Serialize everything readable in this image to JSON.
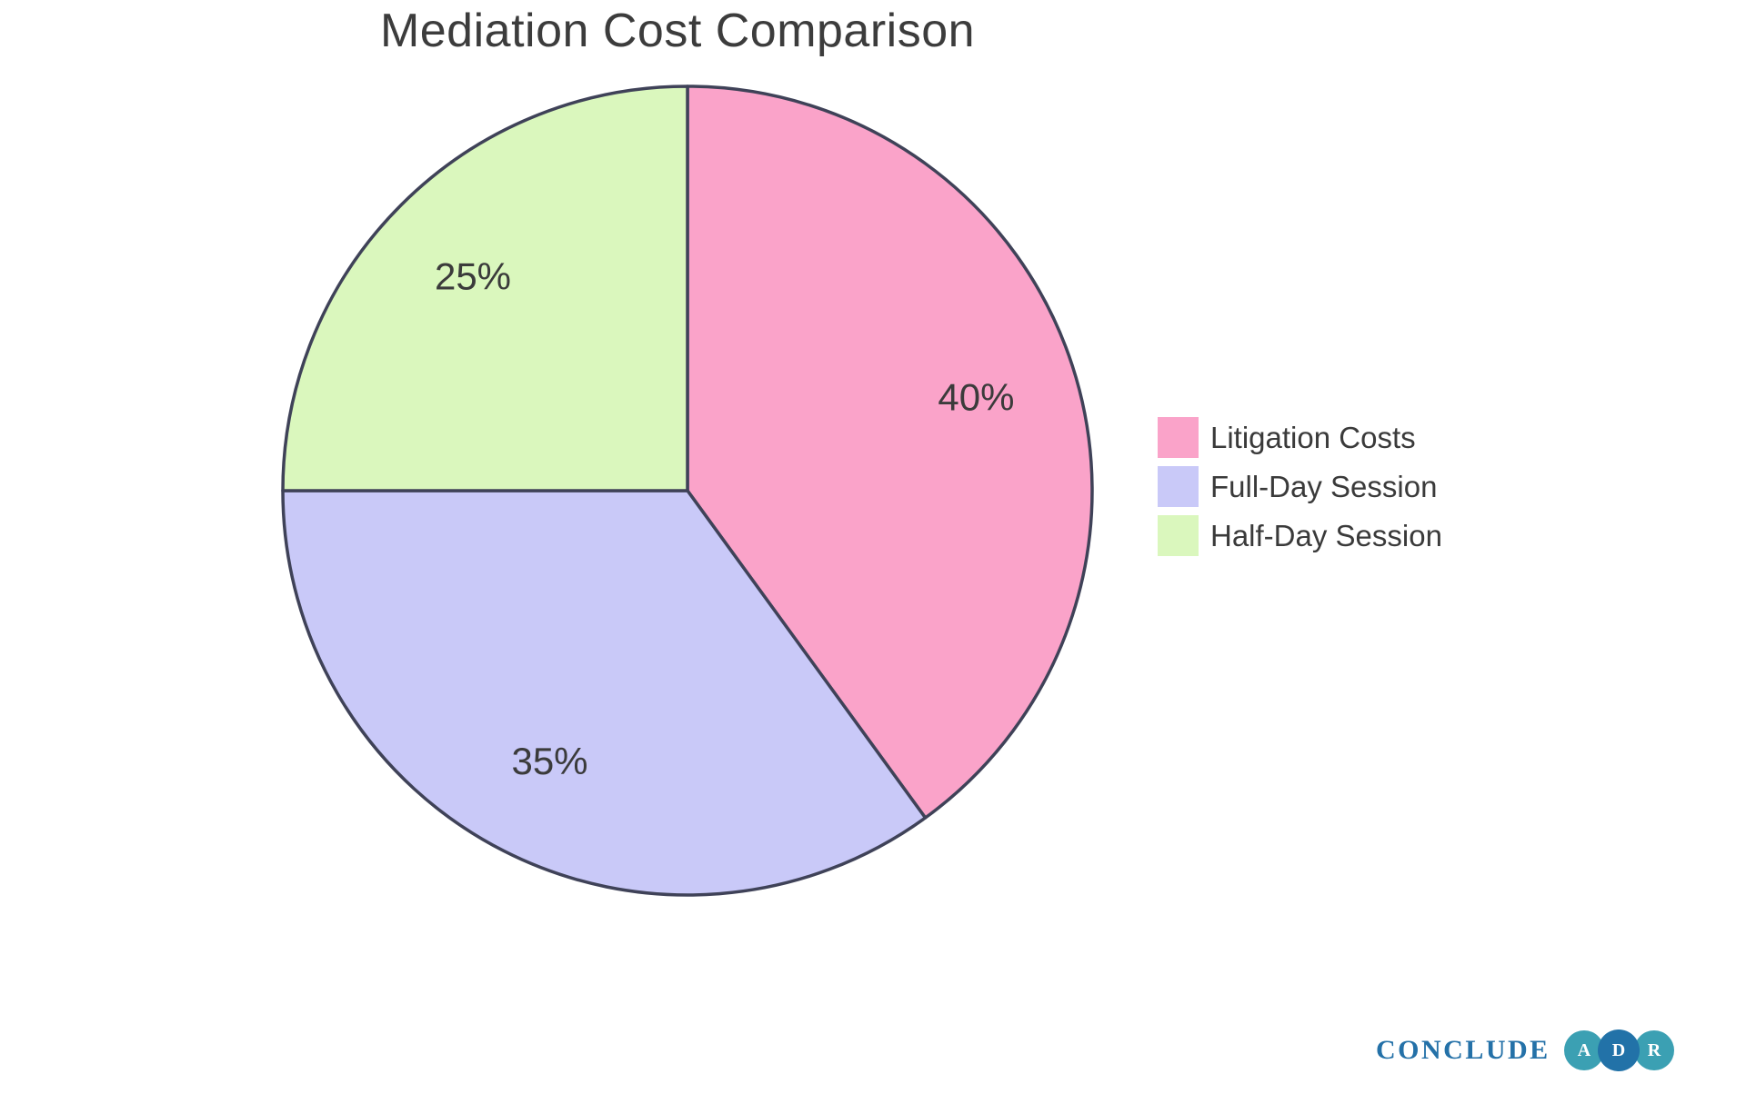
{
  "page": {
    "background": "#FFFFFF"
  },
  "chart_data": {
    "type": "pie",
    "title": "Mediation Cost Comparison",
    "slices": [
      {
        "label": "Litigation Costs",
        "value": 40,
        "display": "40%",
        "color": "#FAA3C9"
      },
      {
        "label": "Full-Day Session",
        "value": 35,
        "display": "35%",
        "color": "#C9C9F8"
      },
      {
        "label": "Half-Day Session",
        "value": 25,
        "display": "25%",
        "color": "#DAF7BD"
      }
    ],
    "start_angle_deg": 0,
    "direction": "clockwise",
    "stroke_color": "#3F4258",
    "stroke_width": 3.5,
    "title_color": "#3C3C3C",
    "label_color": "#3B3B3B",
    "legend_text_color": "#3A3A3A",
    "legend_position": "right",
    "grid": false
  },
  "branding": {
    "wordmark": "CONCLUDE",
    "wordmark_color": "#2471A8",
    "badge_letters": [
      "A",
      "D",
      "R"
    ],
    "badge_teal": "#3BA0B3",
    "badge_blue": "#2272A8",
    "badge_letter_color": "#FFFFFF"
  }
}
